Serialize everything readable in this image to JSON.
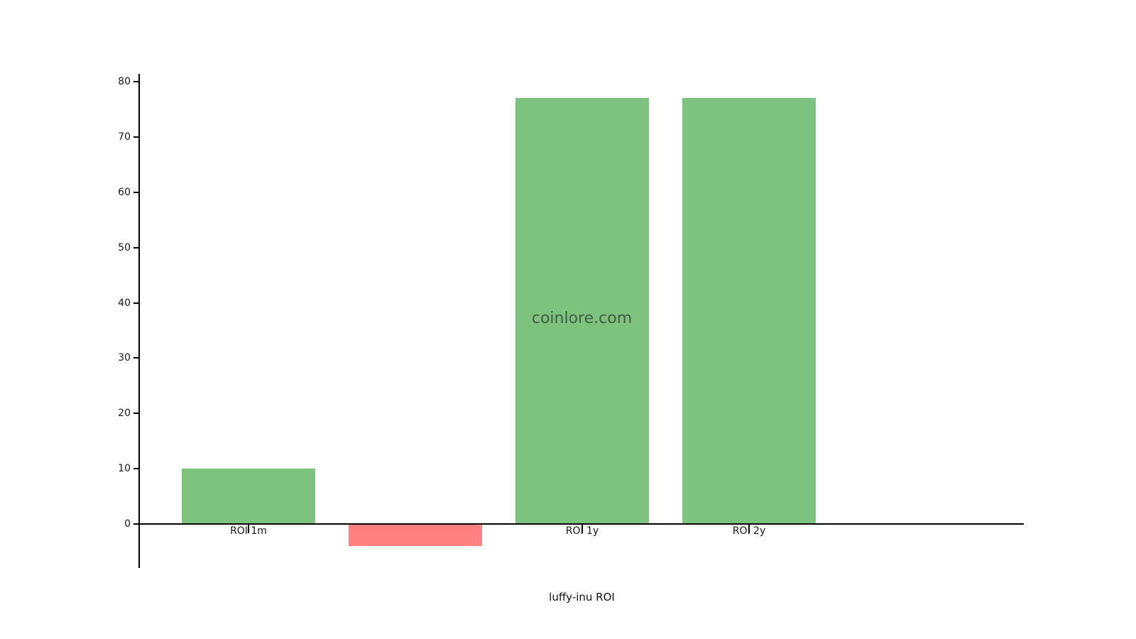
{
  "chart_data": {
    "type": "bar",
    "title": "luffy-inu ROI",
    "watermark": "coinlore.com",
    "categories": [
      "ROI 1m",
      "",
      "ROI 1y",
      "ROI 2y"
    ],
    "values": [
      10,
      -4,
      77,
      77
    ],
    "positive_color": "#7dc37f",
    "negative_color": "#ff8080",
    "yticks": [
      0,
      10,
      20,
      30,
      40,
      50,
      60,
      70,
      80
    ],
    "ylim": [
      -8,
      81.5
    ],
    "xlabel": "",
    "ylabel": "",
    "axis_color": "#000000",
    "tick_text_color": "#1a1a1a",
    "background_color": "#ffffff",
    "grid": false,
    "legend_position": "none"
  }
}
